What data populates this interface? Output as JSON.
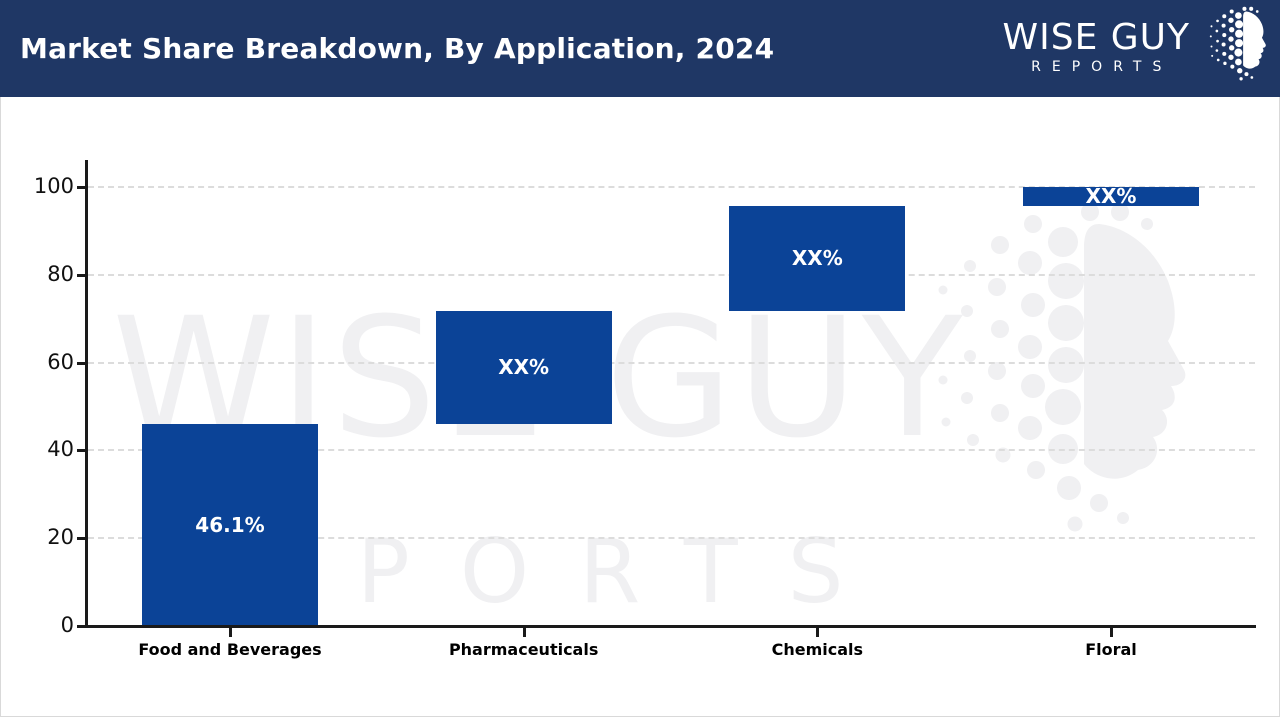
{
  "header": {
    "title": "Market Share Breakdown, By Application, 2024",
    "logo": {
      "line1": "WISE GUY",
      "line2": "REPORTS",
      "icon": "dotted-head-profile-icon"
    }
  },
  "watermark": {
    "line1": "WISE GUY",
    "line2": "REPORTS",
    "icon": "dotted-head-profile-icon"
  },
  "colors": {
    "header_bg": "#1f3765",
    "bar": "#0b4397",
    "bar_label_text": "#ffffff",
    "gridline": "#dcdcdc",
    "axis": "#1a1a1a",
    "watermark": "#f0f0f2",
    "background": "#ffffff"
  },
  "chart_data": {
    "type": "bar",
    "subtype": "waterfall",
    "title": "Market Share Breakdown, By Application, 2024",
    "xlabel": "",
    "ylabel": "",
    "ylim": [
      0,
      100
    ],
    "yticks": [
      0,
      20,
      40,
      60,
      80,
      100
    ],
    "grid": "horizontal-dashed",
    "legend": "none",
    "bar_color": "#0b4397",
    "categories": [
      "Food and Beverages",
      "Pharmaceuticals",
      "Chemicals",
      "Floral"
    ],
    "segments": [
      {
        "category": "Food and Beverages",
        "start": 0,
        "end": 46.1,
        "label": "46.1%"
      },
      {
        "category": "Pharmaceuticals",
        "start": 46.1,
        "end": 71.8,
        "label": "XX%"
      },
      {
        "category": "Chemicals",
        "start": 71.8,
        "end": 95.7,
        "label": "XX%"
      },
      {
        "category": "Floral",
        "start": 95.7,
        "end": 100,
        "label": "XX%"
      }
    ]
  }
}
